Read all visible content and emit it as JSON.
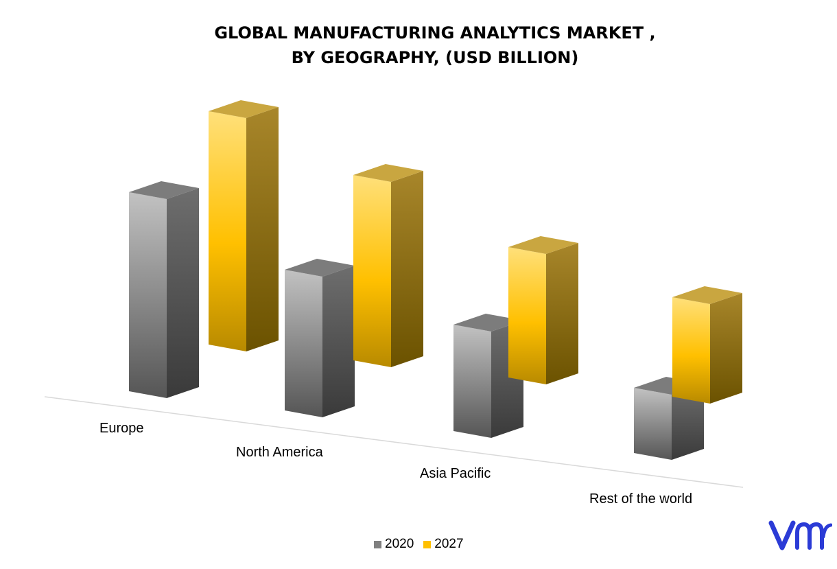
{
  "title_line1": "GLOBAL MANUFACTURING ANALYTICS MARKET ,",
  "title_line2": "BY GEOGRAPHY, (USD BILLION)",
  "logo_text": "vmr",
  "chart_data": {
    "type": "bar",
    "title": "GLOBAL MANUFACTURING ANALYTICS MARKET , BY GEOGRAPHY, (USD BILLION)",
    "categories": [
      "Europe",
      "North America",
      "Asia Pacific",
      "Rest of the world"
    ],
    "series": [
      {
        "name": "2020",
        "color": "#808080",
        "values": [
          2.9,
          2.05,
          1.55,
          0.95
        ]
      },
      {
        "name": "2027",
        "color": "#FFC000",
        "values": [
          3.4,
          2.7,
          1.9,
          1.45
        ]
      }
    ],
    "legend_position": "bottom",
    "grid": false,
    "axis_labels_visible": false
  }
}
